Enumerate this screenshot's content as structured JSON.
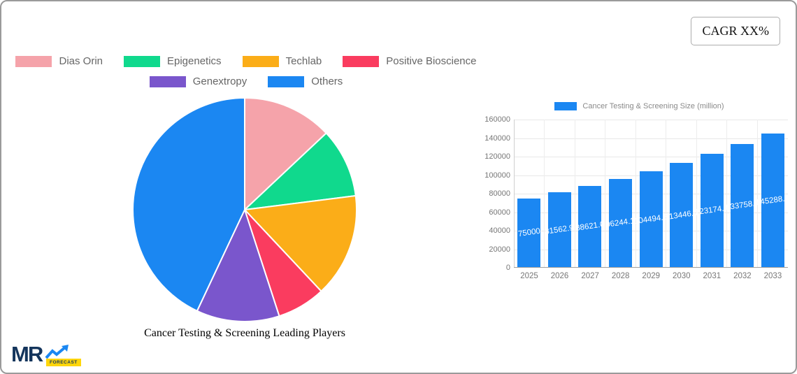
{
  "header": {
    "cagr_label": "CAGR XX%"
  },
  "logo": {
    "mr": "MR",
    "tag": "FORECAST",
    "navy": "#14355c",
    "arrow_blue": "#1b87f2",
    "tag_yellow": "#ffd60a"
  },
  "chart_data": [
    {
      "type": "pie",
      "title": "Cancer Testing & Screening Leading Players",
      "labels": [
        "Dias Orin",
        "Epigenetics",
        "Techlab",
        "Positive Bioscience",
        "Genextropy",
        "Others"
      ],
      "values_pct": [
        13,
        10,
        15,
        7,
        12,
        43
      ],
      "colors": [
        "#f5a3aa",
        "#10d98d",
        "#fbad18",
        "#fa3c5f",
        "#7a56cc",
        "#1b87f2"
      ],
      "start_angle_deg": 0,
      "direction": "clockwise",
      "legend_position": "top",
      "legend_rows": [
        [
          0,
          1,
          2,
          3
        ],
        [
          4,
          5
        ]
      ],
      "slice_border_color": "#ffffff"
    },
    {
      "type": "bar",
      "legend": "Cancer Testing & Screening Size (million)",
      "categories": [
        "2025",
        "2026",
        "2027",
        "2028",
        "2029",
        "2030",
        "2031",
        "2032",
        "2033"
      ],
      "values": [
        75000,
        81562.9,
        88621.0,
        96244.1,
        104494.5,
        113446.4,
        123174.4,
        133758.4,
        145288.0
      ],
      "value_labels": [
        "75000",
        "81562.9",
        "88621.0",
        "96244.1",
        "104494.5",
        "113446.4",
        "123174.4",
        "133758.4",
        "145288.0"
      ],
      "bar_color": "#1b87f2",
      "ylim": [
        0,
        160000
      ],
      "ytick_step": 20000,
      "ytick_labels": [
        "0",
        "20000",
        "40000",
        "60000",
        "80000",
        "100000",
        "120000",
        "140000",
        "160000"
      ],
      "grid": true,
      "value_label_color": "#ffffff"
    }
  ]
}
